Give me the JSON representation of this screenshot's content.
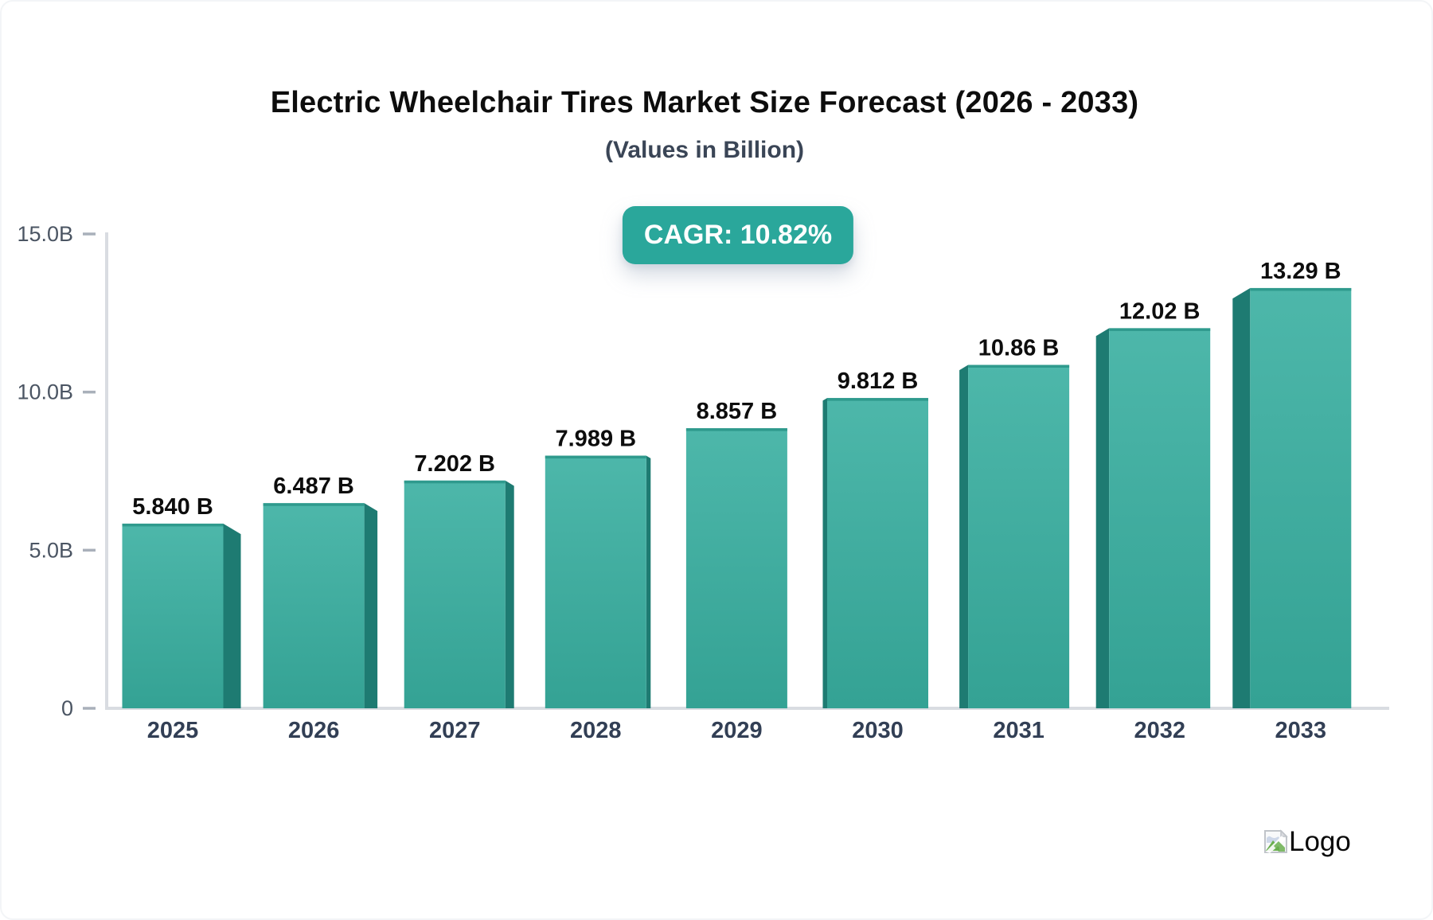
{
  "header": {
    "title": "Electric Wheelchair Tires Market Size Forecast (2026 - 2033)",
    "subtitle": "(Values in Billion)",
    "cagr_label": "CAGR: 10.82%"
  },
  "branding": {
    "logo_alt": "Logo"
  },
  "colors": {
    "bar_face_top": "#4db7aa",
    "bar_face_bottom": "#34a294",
    "bar_side": "#1e7b72",
    "bar_top_edge": "#2f9a8d",
    "axis_line": "#d9dce1",
    "tick_dash": "#a9b0ba",
    "tick_label": "#4b5563",
    "year_label": "#323f55",
    "value_label": "#0d0d0d",
    "badge_bg": "#2aa79b",
    "badge_text": "#ffffff"
  },
  "chart_data": {
    "type": "bar",
    "style": "3d-perspective-columns",
    "title": "Electric Wheelchair Tires Market Size Forecast (2026 - 2033)",
    "subtitle": "(Values in Billion)",
    "annotation": "CAGR: 10.82%",
    "unit": "Billion",
    "categories": [
      "2025",
      "2026",
      "2027",
      "2028",
      "2029",
      "2030",
      "2031",
      "2032",
      "2033"
    ],
    "values": [
      5.84,
      6.487,
      7.202,
      7.989,
      8.857,
      9.812,
      10.86,
      12.02,
      13.29
    ],
    "value_labels": [
      "5.840 B",
      "6.487 B",
      "7.202 B",
      "7.989 B",
      "8.857 B",
      "9.812 B",
      "10.86 B",
      "12.02 B",
      "13.29 B"
    ],
    "yticks": [
      {
        "value": 0,
        "label": "0"
      },
      {
        "value": 5,
        "label": "5.0B"
      },
      {
        "value": 10,
        "label": "10.0B"
      },
      {
        "value": 15,
        "label": "15.0B"
      }
    ],
    "ylim": [
      0,
      15
    ],
    "grid": false,
    "legend": false
  }
}
